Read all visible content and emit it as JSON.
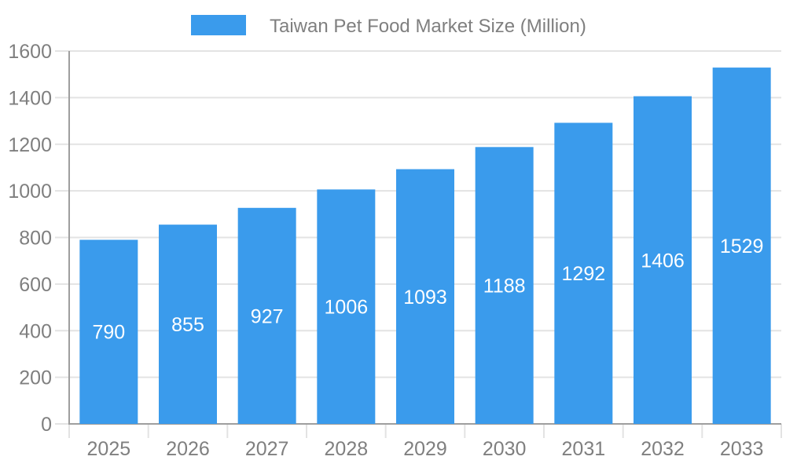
{
  "chart_data": {
    "type": "bar",
    "title": "Taiwan Pet Food Market Size (Million)",
    "categories": [
      "2025",
      "2026",
      "2027",
      "2028",
      "2029",
      "2030",
      "2031",
      "2032",
      "2033"
    ],
    "values": [
      790,
      855,
      927,
      1006,
      1093,
      1188,
      1292,
      1406,
      1529
    ],
    "xlabel": "",
    "ylabel": "",
    "ylim": [
      0,
      1600
    ],
    "yticks": [
      0,
      200,
      400,
      600,
      800,
      1000,
      1200,
      1400,
      1600
    ],
    "grid": true,
    "legend_position": "top-center",
    "value_label_position": "inside-middle"
  },
  "legend": {
    "label": "Taiwan Pet Food Market Size (Million)"
  },
  "colors": {
    "bar": "#3a9bec",
    "bar_value_text": "#ffffff",
    "axis_line": "#9e9e9e",
    "grid_line": "#e3e3e3",
    "tick_text": "#7f7f7f",
    "legend_text": "#7f7f7f",
    "background": "#ffffff"
  }
}
